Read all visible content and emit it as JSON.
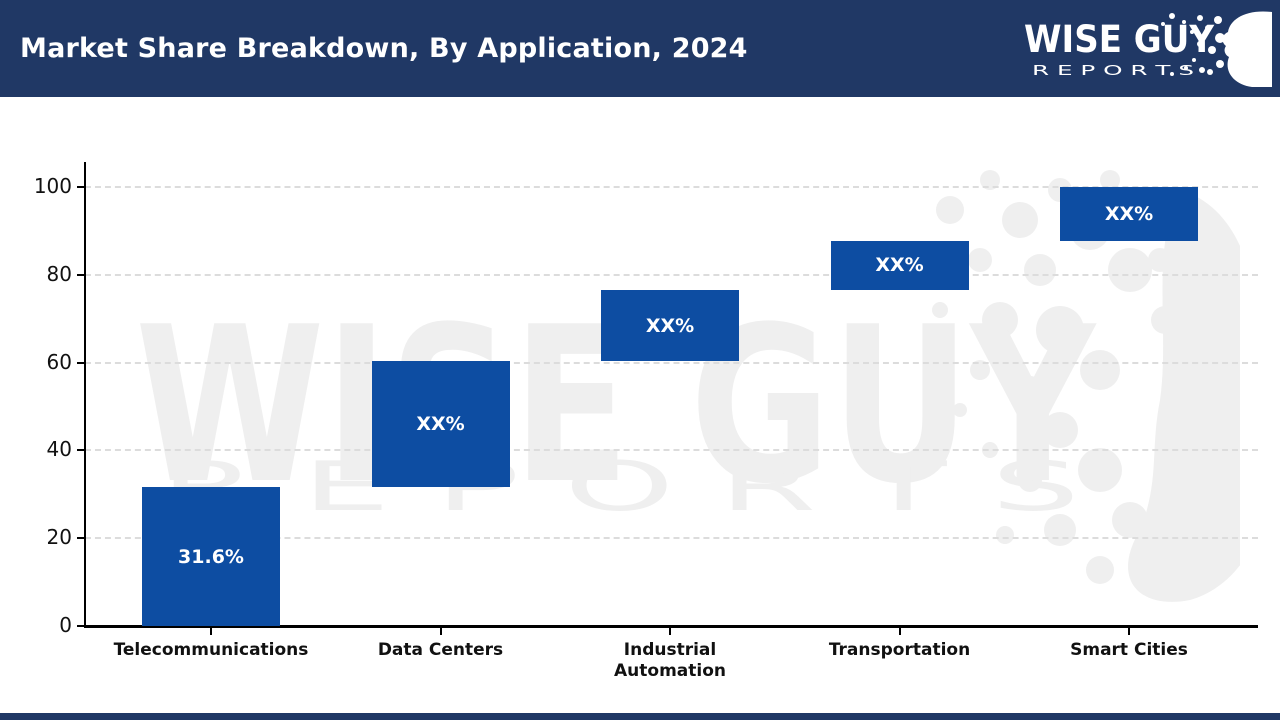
{
  "header": {
    "title": "Market Share Breakdown, By Application, 2024",
    "bg_color": "#203865",
    "logo": {
      "name": "WISE GUY",
      "sub": "R E P O R T S"
    }
  },
  "watermark": {
    "name": "WISE GUY",
    "sub": "R E P O R T S",
    "color": "#efefef"
  },
  "footer": {
    "bg_color": "#203865"
  },
  "chart_data": {
    "type": "bar",
    "subtype": "waterfall",
    "title": "Market Share Breakdown, By Application, 2024",
    "categories": [
      "Telecommunications",
      "Data Centers",
      "Industrial\nAutomation",
      "Transportation",
      "Smart Cities"
    ],
    "segments": [
      {
        "category": "Telecommunications",
        "start": 0,
        "end": 31.6,
        "label": "31.6%"
      },
      {
        "category": "Data Centers",
        "start": 31.6,
        "end": 60.3,
        "label": "XX%"
      },
      {
        "category": "Industrial Automation",
        "start": 60.3,
        "end": 76.5,
        "label": "XX%"
      },
      {
        "category": "Transportation",
        "start": 76.5,
        "end": 87.8,
        "label": "XX%"
      },
      {
        "category": "Smart Cities",
        "start": 87.8,
        "end": 100,
        "label": "XX%"
      }
    ],
    "ylim": [
      0,
      100
    ],
    "yticks": [
      0,
      20,
      40,
      60,
      80,
      100
    ],
    "grid": "horizontal-dashed",
    "legend": "none",
    "bar_color": "#0d4da2",
    "bar_label_color": "#ffffff",
    "axis_color": "#000000",
    "gridline_color": "#dcdcdc"
  }
}
